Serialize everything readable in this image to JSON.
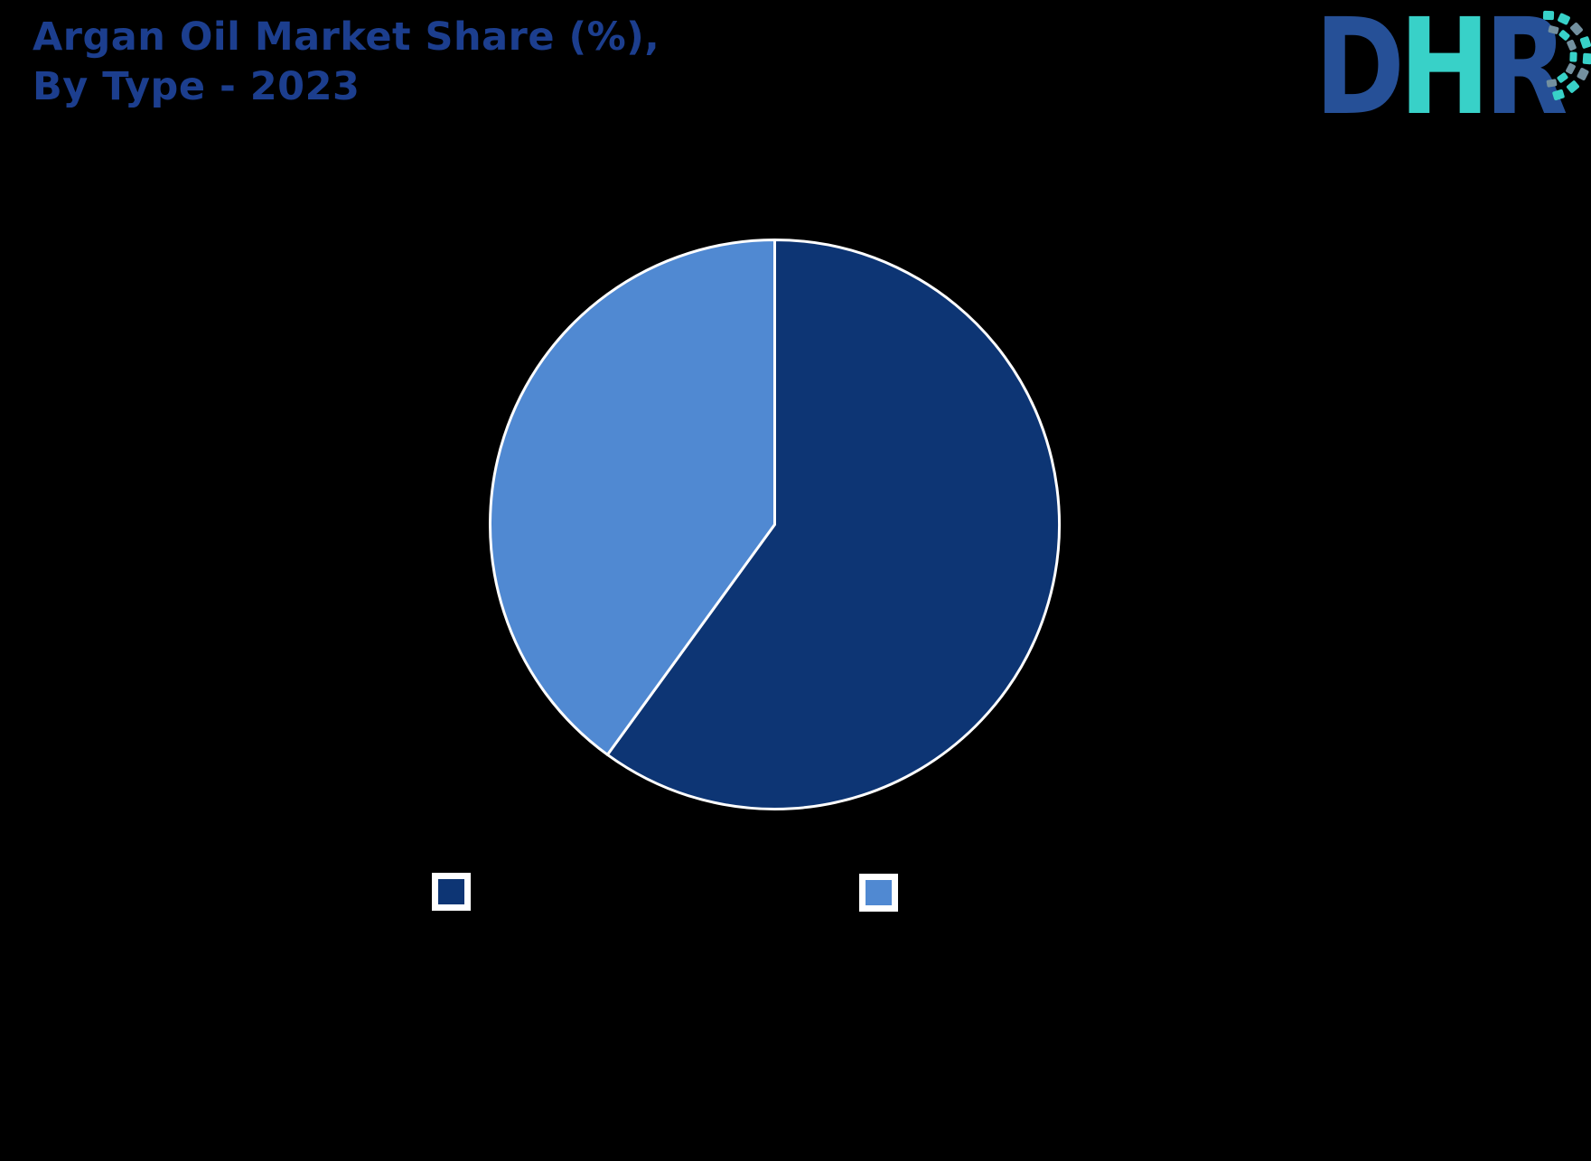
{
  "page": {
    "background": "#000000"
  },
  "header": {
    "title_line1": "Argan Oil Market Share (%),",
    "title_line2": "By Type - 2023"
  },
  "logo": {
    "letter_d": "D",
    "letter_h": "H",
    "letter_r": "R"
  },
  "colors": {
    "title_text": "#1c3e8e",
    "logo_blue": "#265097",
    "logo_teal": "#38d1c8",
    "logo_burst_slate": "#73909f",
    "slice_dark_blue": "#0d3574",
    "slice_light_blue": "#5089d2",
    "slice_outline": "#ffffff"
  },
  "chart_data": {
    "type": "pie",
    "title": "Argan Oil Market Share (%), By Type - 2023",
    "labels": [
      "",
      ""
    ],
    "values": [
      60,
      40
    ],
    "colors": [
      "#0d3574",
      "#5089d2"
    ],
    "start_angle_deg": 0,
    "direction": "clockwise",
    "slice_stroke_color": "#ffffff",
    "legend_position": "bottom",
    "legend_labels_visible": false
  }
}
